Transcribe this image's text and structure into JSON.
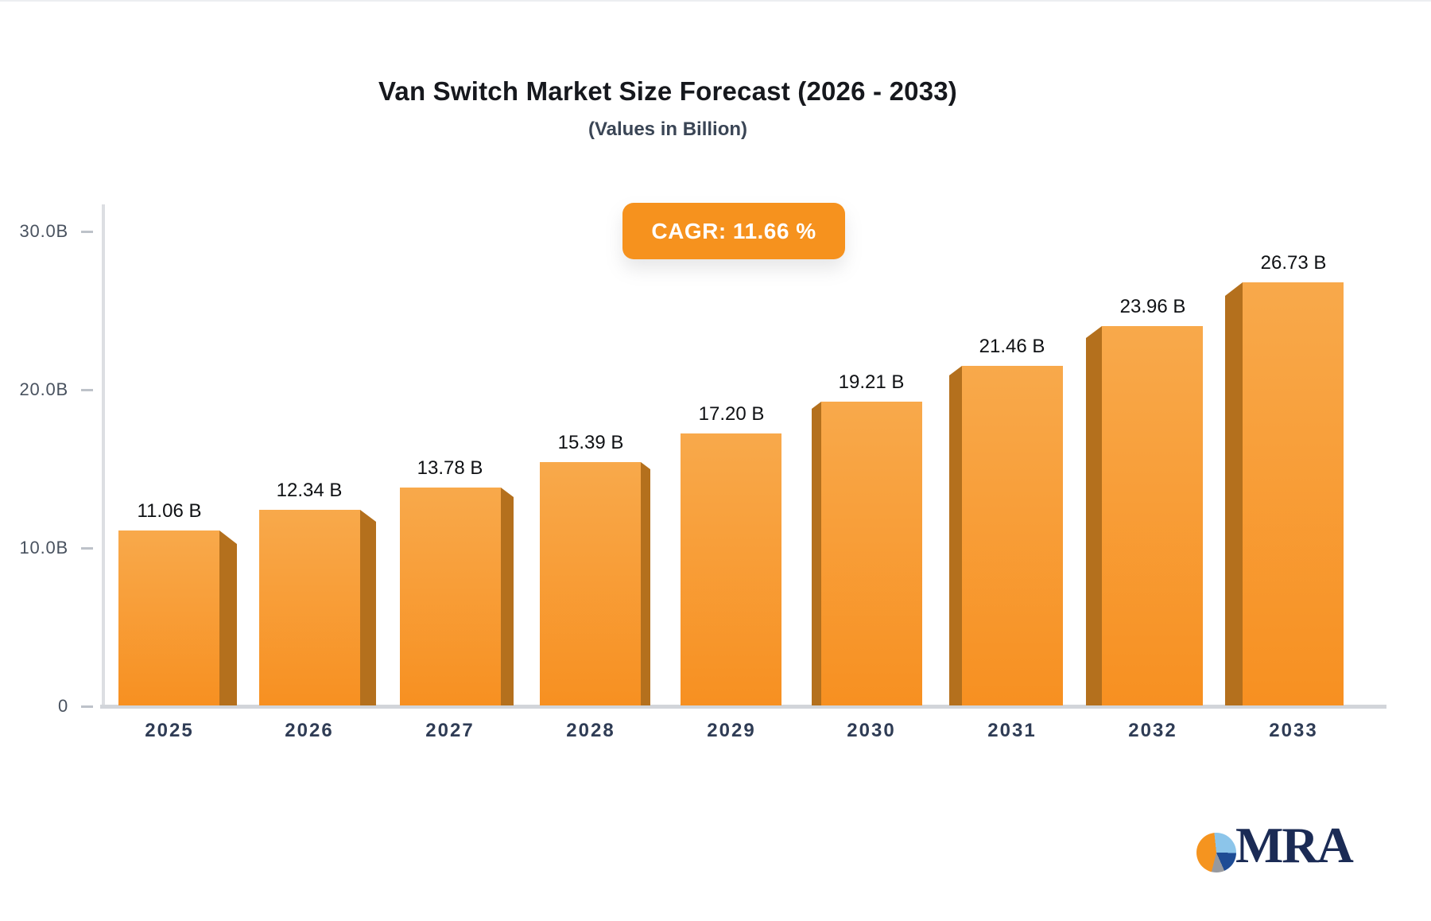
{
  "header": {
    "title": "Van Switch Market Size Forecast (2026 - 2033)",
    "subtitle": "(Values in Billion)",
    "cagr_badge": "CAGR: 11.66 %"
  },
  "chart_data": {
    "type": "bar",
    "title": "Van Switch Market Size Forecast (2026 - 2033)",
    "subtitle": "(Values in Billion)",
    "cagr": "11.66 %",
    "categories": [
      "2025",
      "2026",
      "2027",
      "2028",
      "2029",
      "2030",
      "2031",
      "2032",
      "2033"
    ],
    "values": [
      11.06,
      12.34,
      13.78,
      15.39,
      17.2,
      19.21,
      21.46,
      23.96,
      26.73
    ],
    "bar_labels": [
      "11.06 B",
      "12.34 B",
      "13.78 B",
      "15.39 B",
      "17.20 B",
      "19.21 B",
      "21.46 B",
      "23.96 B",
      "26.73 B"
    ],
    "y_ticks": [
      {
        "label": "30.0B",
        "value": 30
      },
      {
        "label": "20.0B",
        "value": 20
      },
      {
        "label": "10.0B",
        "value": 10
      },
      {
        "label": "0",
        "value": 0
      }
    ],
    "ylim": [
      0,
      30
    ],
    "xlabel": "",
    "ylabel": "",
    "grid": "off",
    "legend": "none",
    "colors": {
      "bar_top": "#F8A94B",
      "bar_bottom": "#F79021",
      "bar_side": "#B4701D",
      "badge_background": "#F6921E",
      "badge_text": "#FFFFFF",
      "axis_line": "#D2D5DA",
      "year_label": "#2F3C55",
      "value_label": "#0F1114"
    }
  },
  "branding": {
    "logo_text": "MRA"
  }
}
